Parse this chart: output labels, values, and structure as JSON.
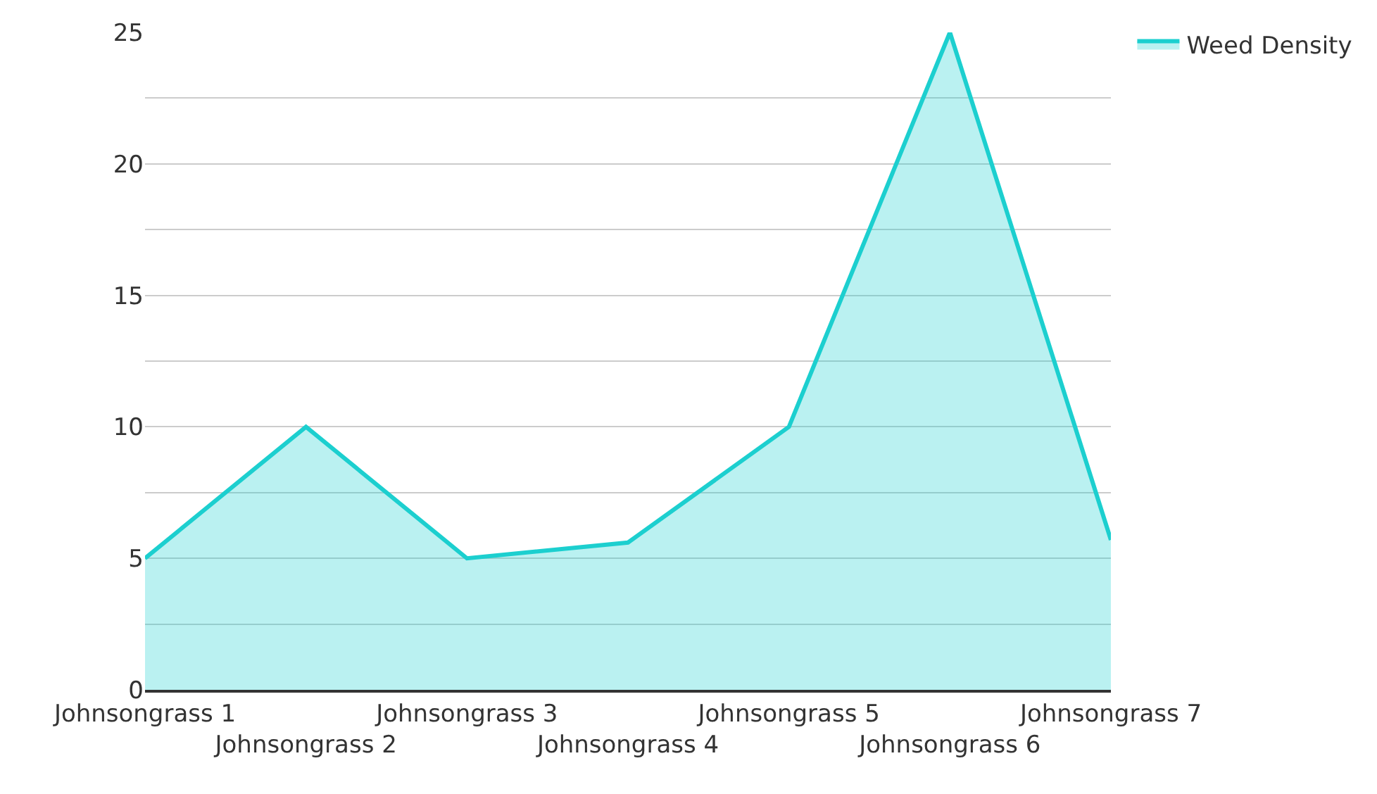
{
  "chart_data": {
    "type": "area",
    "categories": [
      "Johnsongrass 1",
      "Johnsongrass 2",
      "Johnsongrass 3",
      "Johnsongrass 4",
      "Johnsongrass 5",
      "Johnsongrass 6",
      "Johnsongrass 7"
    ],
    "series": [
      {
        "name": "Weed Density",
        "color": "#1ccfcf",
        "values": [
          5,
          10,
          5,
          5.6,
          10,
          25,
          5.7
        ]
      }
    ],
    "ylim": [
      0,
      25
    ],
    "yticks": [
      0,
      {
        "value": 2.5,
        "label": null
      },
      5,
      {
        "value": 7.5,
        "label": null
      },
      10,
      {
        "value": 12.5,
        "label": null
      },
      15,
      {
        "value": 17.5,
        "label": null
      },
      20,
      {
        "value": 22.5,
        "label": null
      },
      25
    ],
    "grid": "y",
    "legend": "top right",
    "line_style": "solid",
    "marker": "none"
  }
}
